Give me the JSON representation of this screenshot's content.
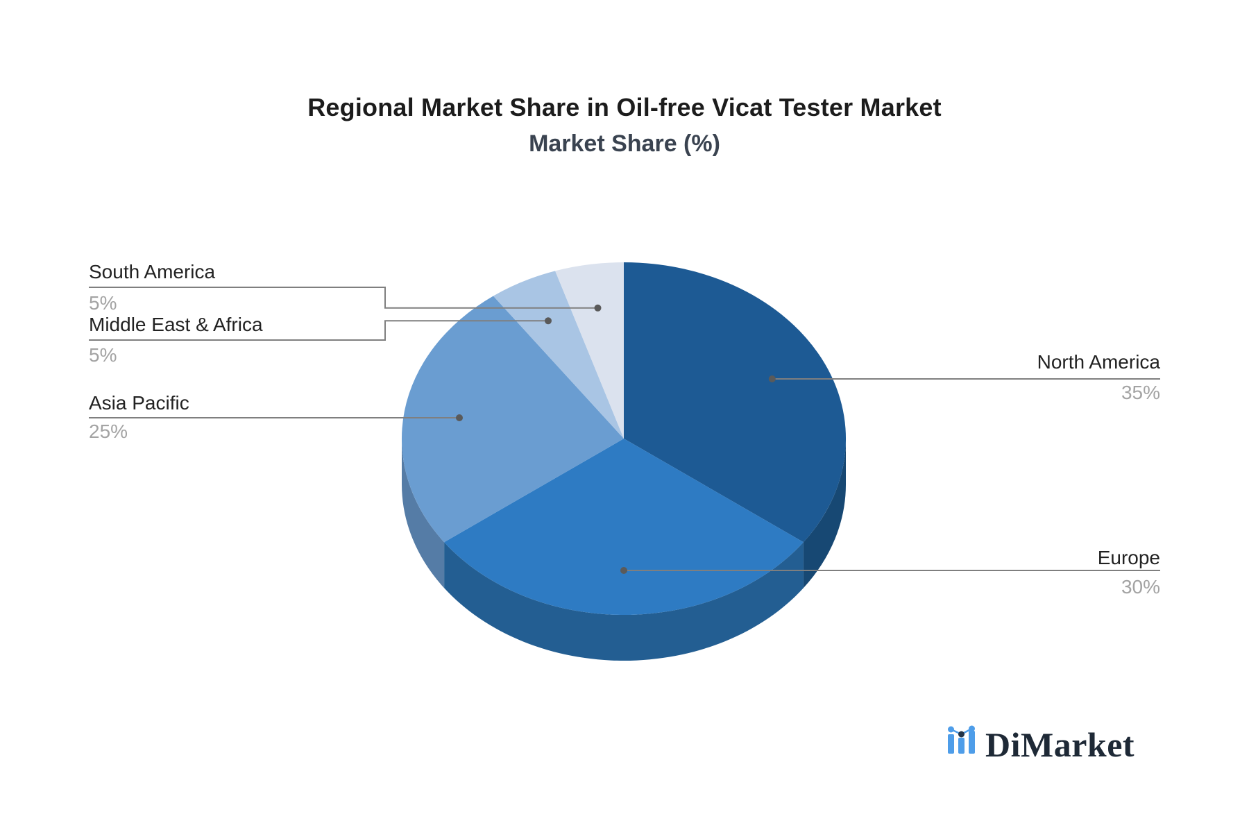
{
  "header": {
    "title": "Regional Market Share in Oil-free Vicat Tester Market",
    "subtitle": "Market Share (%)"
  },
  "chart_data": {
    "type": "pie",
    "title": "Regional Market Share in Oil-free Vicat Tester Market",
    "subtitle": "Market Share (%)",
    "unit": "%",
    "effect": "3d",
    "start_angle": "12-oclock",
    "direction": "clockwise",
    "legend_position": "callout-labels",
    "slices": [
      {
        "name": "North America",
        "value": 35,
        "pct_label": "35%",
        "color": "#1D5A94",
        "side_color": "#174873"
      },
      {
        "name": "Europe",
        "value": 30,
        "pct_label": "30%",
        "color": "#2E7BC3",
        "side_color": "#235E92"
      },
      {
        "name": "Asia Pacific",
        "value": 25,
        "pct_label": "25%",
        "color": "#6A9DD1",
        "side_color": "#557CA6"
      },
      {
        "name": "Middle East & Africa",
        "value": 5,
        "pct_label": "5%",
        "color": "#A9C5E4"
      },
      {
        "name": "South America",
        "value": 5,
        "pct_label": "5%",
        "color": "#DBE2EE"
      }
    ]
  },
  "branding": {
    "logo_text": "DiMarket",
    "logo_icon": "bar-chart-with-trend-dots-icon"
  },
  "colors": {
    "background": "#FFFFFF",
    "leader_line": "#7F7F7F",
    "leader_dot": "#5A5A5A",
    "label_text": "#222222",
    "pct_text": "#A3A3A3",
    "title_text": "#1C1C1C",
    "subtitle_text": "#3A4350",
    "logo_text": "#1E2936",
    "logo_accent": "#4E9DE9",
    "logo_dark": "#243447"
  }
}
